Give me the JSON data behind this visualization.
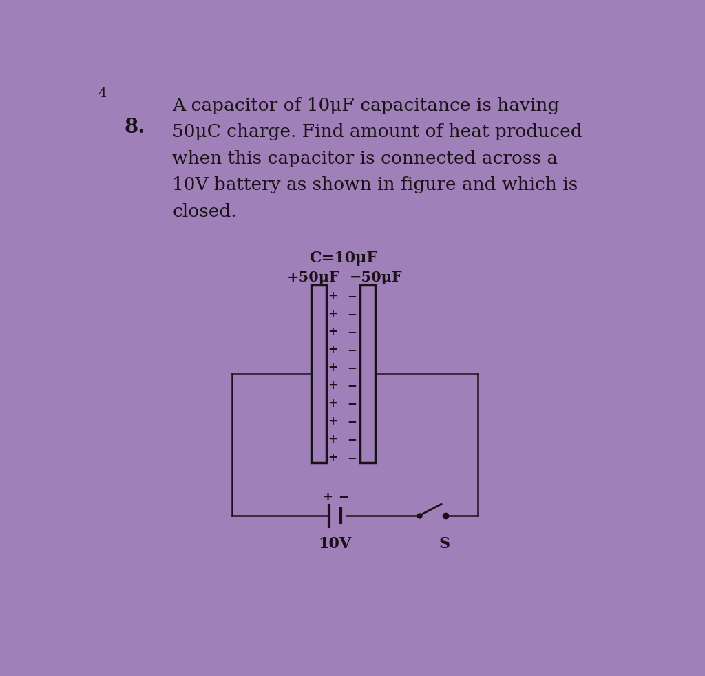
{
  "bg_color": "#a080b8",
  "text_color": "#1a1218",
  "question_number": "8.",
  "question_text_lines": [
    "A capacitor of 10μF capacitance is having",
    "50μC charge. Find amount of heat produced",
    "when this capacitor is connected across a",
    "10V battery as shown in figure and which is",
    "closed."
  ],
  "cap_label": "C=10μF",
  "left_plate_label": "+50μF",
  "right_plate_label": "−50μF",
  "battery_label": "10V",
  "switch_label": "S",
  "plus_label": "+",
  "minus_label": "−",
  "n_charge_signs": 10,
  "plate_lw": 2.5,
  "wire_lw": 1.8,
  "wire_color": "#1a1218"
}
